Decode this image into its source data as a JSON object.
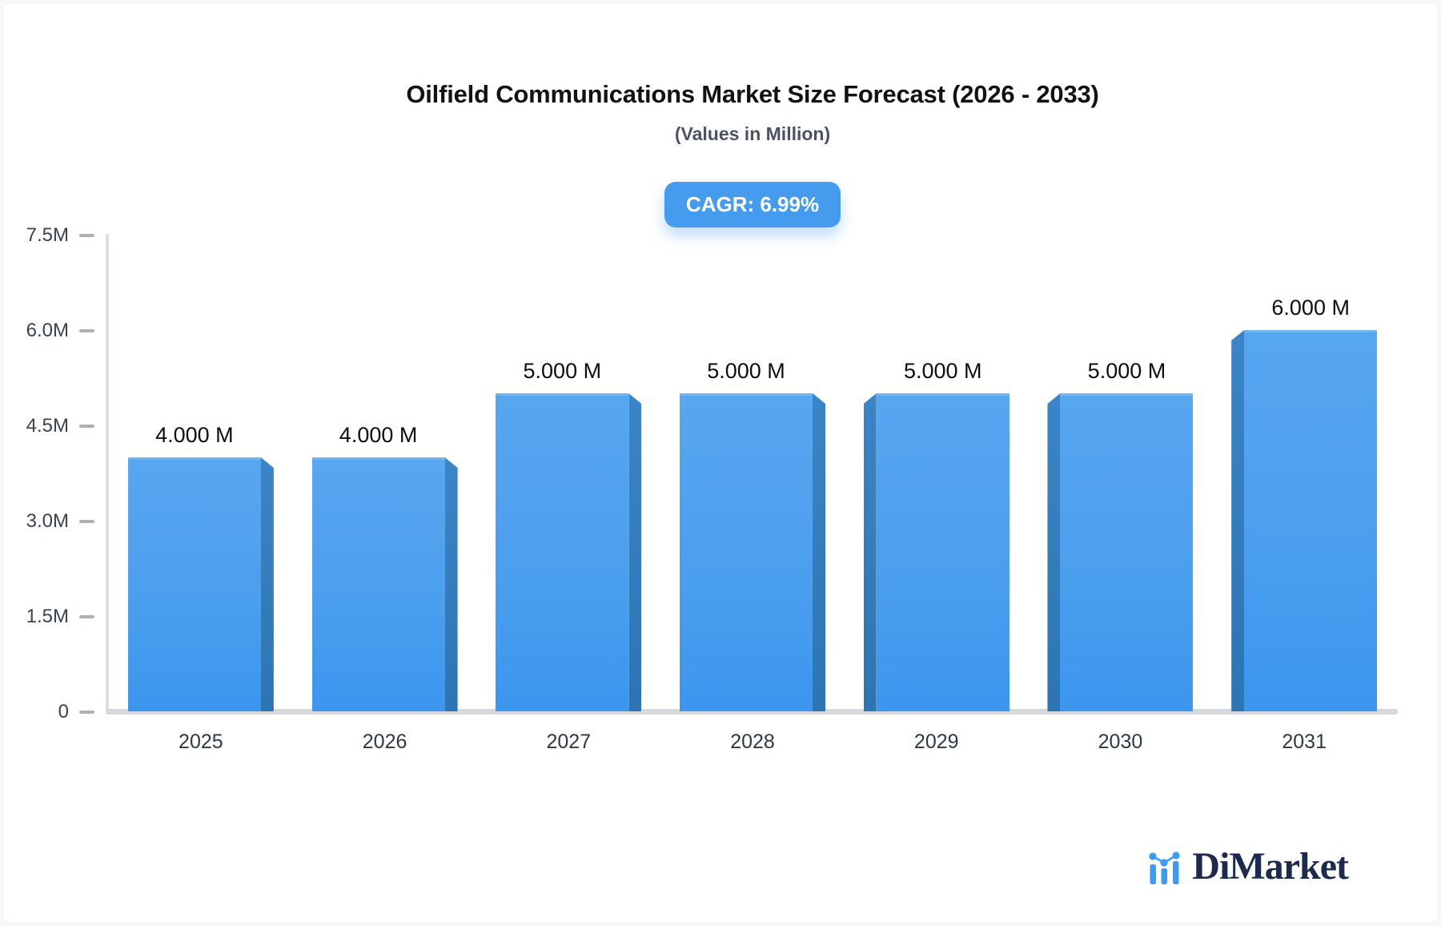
{
  "chart_data": {
    "type": "bar",
    "title": "Oilfield Communications Market Size Forecast (2026 - 2033)",
    "subtitle": "(Values in Million)",
    "badge": "CAGR: 6.99%",
    "categories": [
      "2025",
      "2026",
      "2027",
      "2028",
      "2029",
      "2030",
      "2031"
    ],
    "values": [
      4,
      4,
      5,
      5,
      5,
      5,
      6
    ],
    "value_labels": [
      "4.000 M",
      "4.000 M",
      "5.000 M",
      "5.000 M",
      "5.000 M",
      "5.000 M",
      "6.000 M"
    ],
    "unit": "M",
    "y_ticks": [
      "7.5M",
      "6.0M",
      "4.5M",
      "3.0M",
      "1.5M",
      "0"
    ],
    "ylim": [
      0,
      7.5
    ],
    "xlabel": "",
    "ylabel": "",
    "grid": false,
    "legend": "none",
    "bevel_sides": [
      "right",
      "right",
      "right",
      "right",
      "left",
      "left",
      "left"
    ]
  },
  "branding": {
    "logo_text": "DiMarket",
    "logo_icon": "bar-chart-logo-icon"
  },
  "colors": {
    "bar_face_top": "#57a6f0",
    "bar_face_bottom": "#3b96ee",
    "bar_side": "#2f77b4",
    "badge_bg": "#459bed",
    "badge_text": "#ffffff",
    "axis_line": "#dcdfe4",
    "baseline": "#d5d9de",
    "tick_dash": "#abb0b9",
    "y_label": "#3a4252",
    "x_label": "#2e3847",
    "value_label": "#0c0e11",
    "title": "#101316",
    "subtitle": "#4a5365",
    "logo_navy": "#1c2b4d",
    "logo_blue": "#3b9cf5"
  }
}
